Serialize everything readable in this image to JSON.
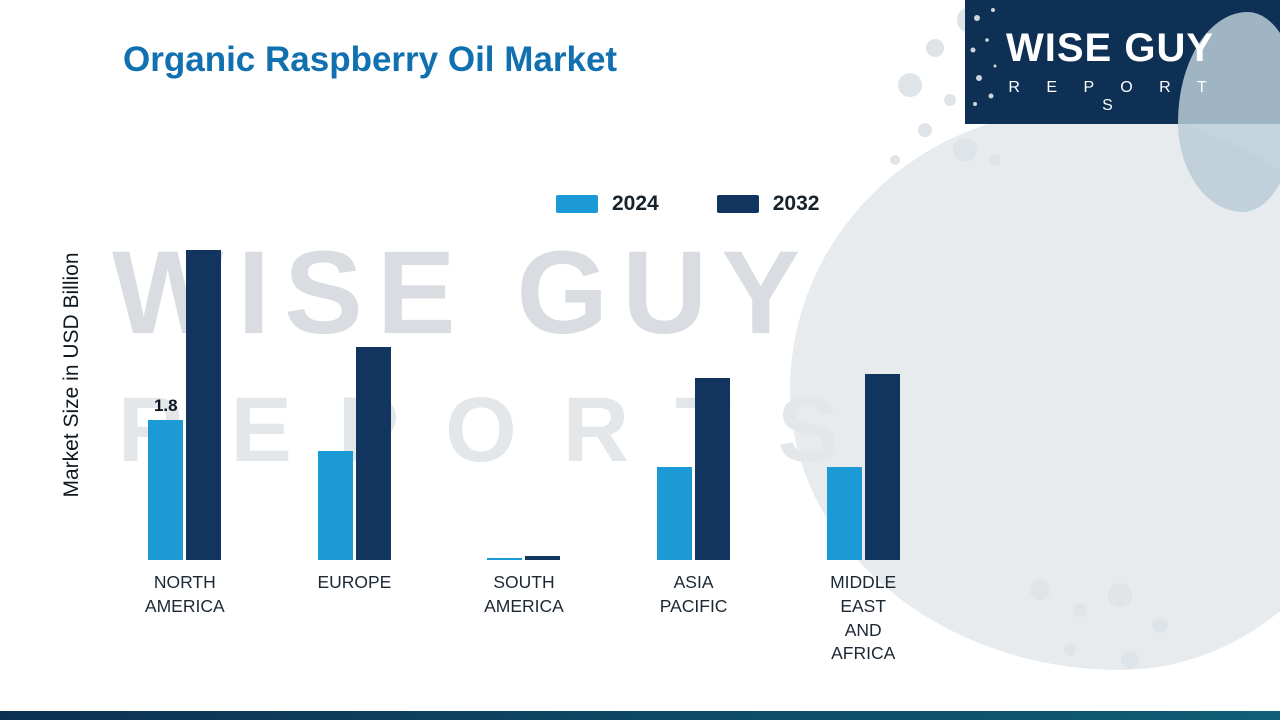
{
  "title": "Organic Raspberry Oil Market",
  "legend": [
    {
      "label": "2024",
      "color": "#1b9ad6"
    },
    {
      "label": "2032",
      "color": "#12355f"
    }
  ],
  "chart_data": {
    "type": "bar",
    "title": "Organic Raspberry Oil Market",
    "xlabel": "",
    "ylabel": "Market Size in USD Billion",
    "ylim": [
      0,
      4.2
    ],
    "grid": false,
    "legend_position": "top",
    "categories": [
      "NORTH AMERICA",
      "EUROPE",
      "SOUTH AMERICA",
      "ASIA PACIFIC",
      "MIDDLE EAST AND AFRICA"
    ],
    "category_display_lines": [
      [
        "NORTH",
        "AMERICA"
      ],
      [
        "EUROPE"
      ],
      [
        "SOUTH",
        "AMERICA"
      ],
      [
        "ASIA",
        "PACIFIC"
      ],
      [
        "MIDDLE",
        "EAST",
        "AND",
        "AFRICA"
      ]
    ],
    "series": [
      {
        "name": "2024",
        "color": "#1b9ad6",
        "values": [
          1.8,
          1.4,
          0.03,
          1.2,
          1.2
        ]
      },
      {
        "name": "2032",
        "color": "#12355f",
        "values": [
          4.0,
          2.75,
          0.05,
          2.35,
          2.4
        ]
      }
    ],
    "bar_labels": [
      {
        "series": "2024",
        "category_index": 0,
        "text": "1.8"
      }
    ]
  },
  "logo": {
    "line1": "WISE GUY",
    "line2": "R E P O R T S"
  },
  "watermark": {
    "line1": "WISE GUY",
    "line2": "REPORTS"
  },
  "colors": {
    "title": "#1070b0",
    "series_2024": "#1b9ad6",
    "series_2032": "#12355f",
    "footer_left": "#0c3150",
    "footer_right": "#0f5e77",
    "logo_background": "#0e3054"
  }
}
